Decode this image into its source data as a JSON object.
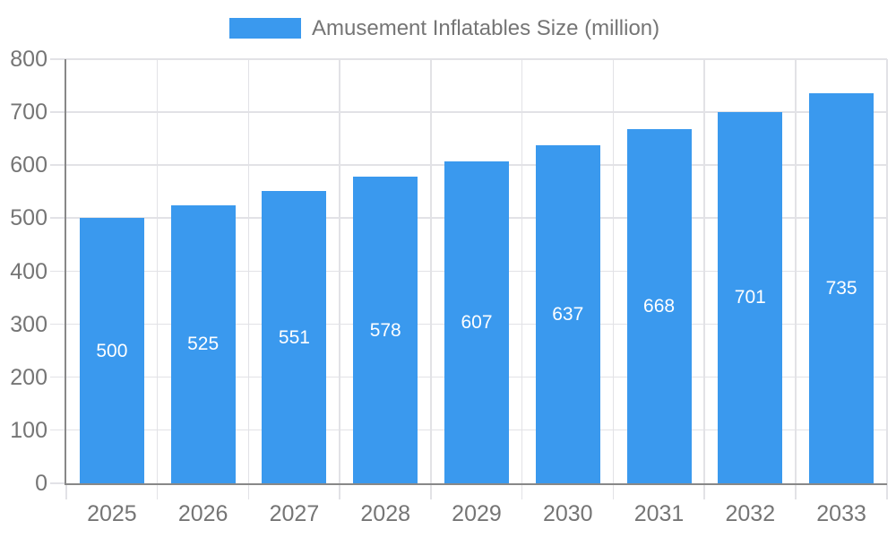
{
  "chart_data": {
    "type": "bar",
    "title": "Amusement Inflatables Size (million)",
    "legend": {
      "label": "Amusement Inflatables Size (million)",
      "position": "top"
    },
    "categories": [
      "2025",
      "2026",
      "2027",
      "2028",
      "2029",
      "2030",
      "2031",
      "2032",
      "2033"
    ],
    "series": [
      {
        "name": "Amusement Inflatables Size (million)",
        "values": [
          500,
          525,
          551,
          578,
          607,
          637,
          668,
          701,
          735
        ]
      }
    ],
    "xlabel": "",
    "ylabel": "",
    "ylim": [
      0,
      800
    ],
    "ytick_step": 100,
    "yticks": [
      0,
      100,
      200,
      300,
      400,
      500,
      600,
      700,
      800
    ],
    "grid": true,
    "value_labels": {
      "visible": true,
      "position": "inside-center",
      "color": "#ffffff"
    },
    "colors": {
      "bar": "#3A99EE",
      "grid": "#E2E2E6",
      "axis": "#888888",
      "label": "#757575",
      "value_label": "#ffffff",
      "background": "#ffffff"
    }
  }
}
